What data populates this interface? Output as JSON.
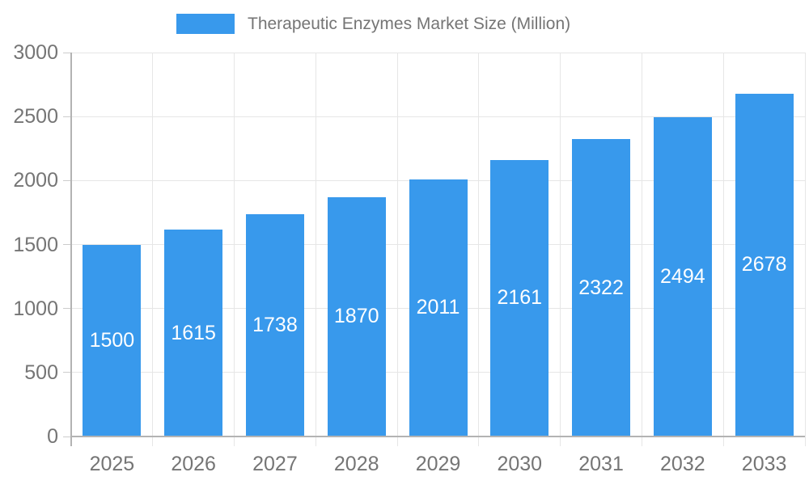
{
  "chart_data": {
    "type": "bar",
    "title": "Therapeutic Enzymes Market Size (Million)",
    "categories": [
      "2025",
      "2026",
      "2027",
      "2028",
      "2029",
      "2030",
      "2031",
      "2032",
      "2033"
    ],
    "values": [
      1500,
      1615,
      1738,
      1870,
      2011,
      2161,
      2322,
      2494,
      2678
    ],
    "xlabel": "",
    "ylabel": "",
    "ylim": [
      0,
      3000
    ],
    "yticks": [
      0,
      500,
      1000,
      1500,
      2000,
      2500,
      3000
    ],
    "grid": true,
    "legend_position": "top",
    "bar_color": "#3899EC",
    "bar_label_color": "#ffffff"
  },
  "colors": {
    "axis_line": "#b3b3b3",
    "gridline": "#e6e6e6",
    "tick": "#cccccc",
    "axis_text": "#757575",
    "background": "#ffffff"
  }
}
